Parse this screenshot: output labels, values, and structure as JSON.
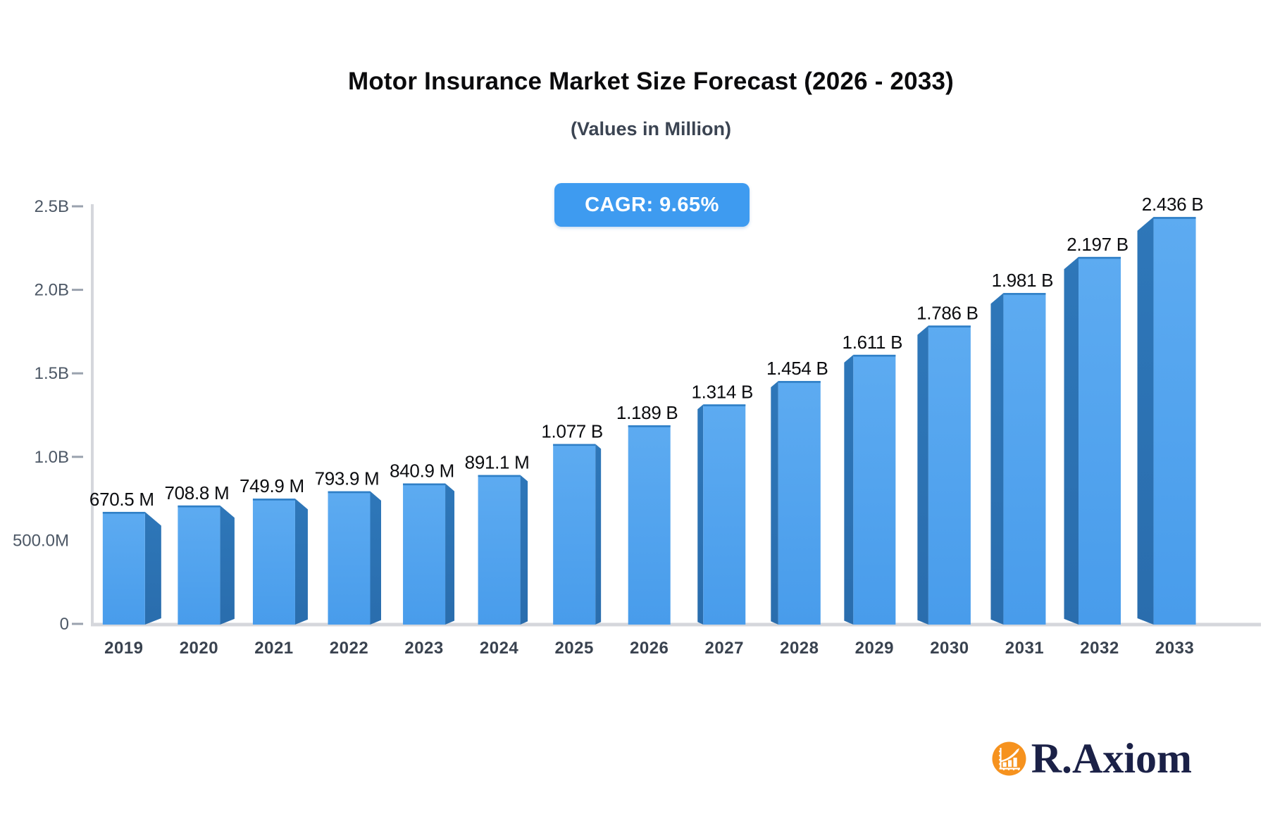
{
  "header": {
    "title": "Motor Insurance Market Size Forecast (2026 - 2033)",
    "subtitle": "(Values in Million)",
    "cagr_label": "CAGR: 9.65%"
  },
  "branding": {
    "name": "R.Axiom",
    "logo_icon": "bar-chart-growth-icon"
  },
  "colors": {
    "badge_bg": "#3e9bf0",
    "badge_text": "#ffffff",
    "bar_front_top": "#5dabf1",
    "bar_front_bottom": "#489ceb",
    "bar_side_top": "#2e77b9",
    "bar_side_bottom": "#2a6dad",
    "bar_top_edge": "#2f7fc6",
    "axis_line": "#d5d7dc",
    "tick_dash": "#9aa2ae",
    "y_label": "#4d5866",
    "x_label": "#39424f",
    "value_label": "#0c0d10",
    "title": "#0b0b0d",
    "subtitle": "#3b4452",
    "logo_orange": "#f6921e",
    "logo_navy": "#1b2147"
  },
  "chart_data": {
    "type": "bar",
    "title": "Motor Insurance Market Size Forecast (2026 - 2033)",
    "subtitle": "(Values in Million)",
    "annotation": "CAGR: 9.65%",
    "legend": "none",
    "grid": "off",
    "categories": [
      "2019",
      "2020",
      "2021",
      "2022",
      "2023",
      "2024",
      "2025",
      "2026",
      "2027",
      "2028",
      "2029",
      "2030",
      "2031",
      "2032",
      "2033"
    ],
    "values_million": [
      670.5,
      708.8,
      749.9,
      793.9,
      840.9,
      891.1,
      1077,
      1189,
      1314,
      1454,
      1611,
      1786,
      1981,
      2197,
      2436
    ],
    "value_labels": [
      "670.5 M",
      "708.8 M",
      "749.9 M",
      "793.9 M",
      "840.9 M",
      "891.1 M",
      "1.077 B",
      "1.189 B",
      "1.314 B",
      "1.454 B",
      "1.611 B",
      "1.786 B",
      "1.981 B",
      "2.197 B",
      "2.436 B"
    ],
    "ylim_million": [
      0,
      2500
    ],
    "y_axis_ticks": [
      {
        "label": "2.5B",
        "value_million": 2500,
        "dash": true
      },
      {
        "label": "2.0B",
        "value_million": 2000,
        "dash": true
      },
      {
        "label": "1.5B",
        "value_million": 1500,
        "dash": true
      },
      {
        "label": "1.0B",
        "value_million": 1000,
        "dash": true
      },
      {
        "label": "500.0M",
        "value_million": 500,
        "dash": false
      },
      {
        "label": "0",
        "value_million": 0,
        "dash": true
      }
    ]
  }
}
